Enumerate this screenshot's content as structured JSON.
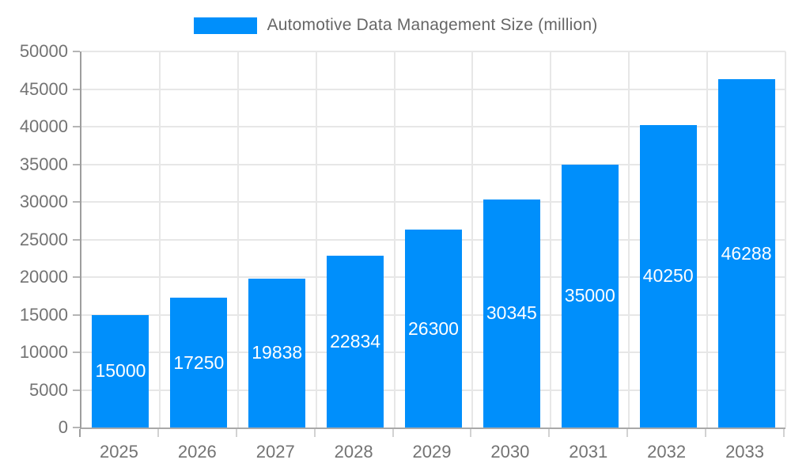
{
  "legend": {
    "label": "Automotive Data Management Size (million)",
    "swatch_color": "#008FFB"
  },
  "chart_data": {
    "type": "bar",
    "title": "Automotive Data Management Size (million)",
    "series_name": "Automotive Data Management Size (million)",
    "categories": [
      "2025",
      "2026",
      "2027",
      "2028",
      "2029",
      "2030",
      "2031",
      "2032",
      "2033"
    ],
    "values": [
      15000,
      17250,
      19838,
      22834,
      26300,
      30345,
      35000,
      40250,
      46288
    ],
    "value_labels": [
      "15000",
      "17250",
      "19838",
      "22834",
      "26300",
      "30345",
      "35000",
      "40250",
      "46288"
    ],
    "xlabel": "",
    "ylabel": "",
    "ylim": [
      0,
      50000
    ],
    "y_tick_step": 5000,
    "y_tick_labels": [
      "0",
      "5000",
      "10000",
      "15000",
      "20000",
      "25000",
      "30000",
      "35000",
      "40000",
      "45000",
      "50000"
    ],
    "grid": true,
    "legend_position": "top",
    "bar_color": "#008FFB",
    "value_label_color": "#ffffff",
    "axis_text_color": "#737373",
    "gridline_color": "#e7e7e7",
    "axis_line_color": "#9e9e9e"
  }
}
